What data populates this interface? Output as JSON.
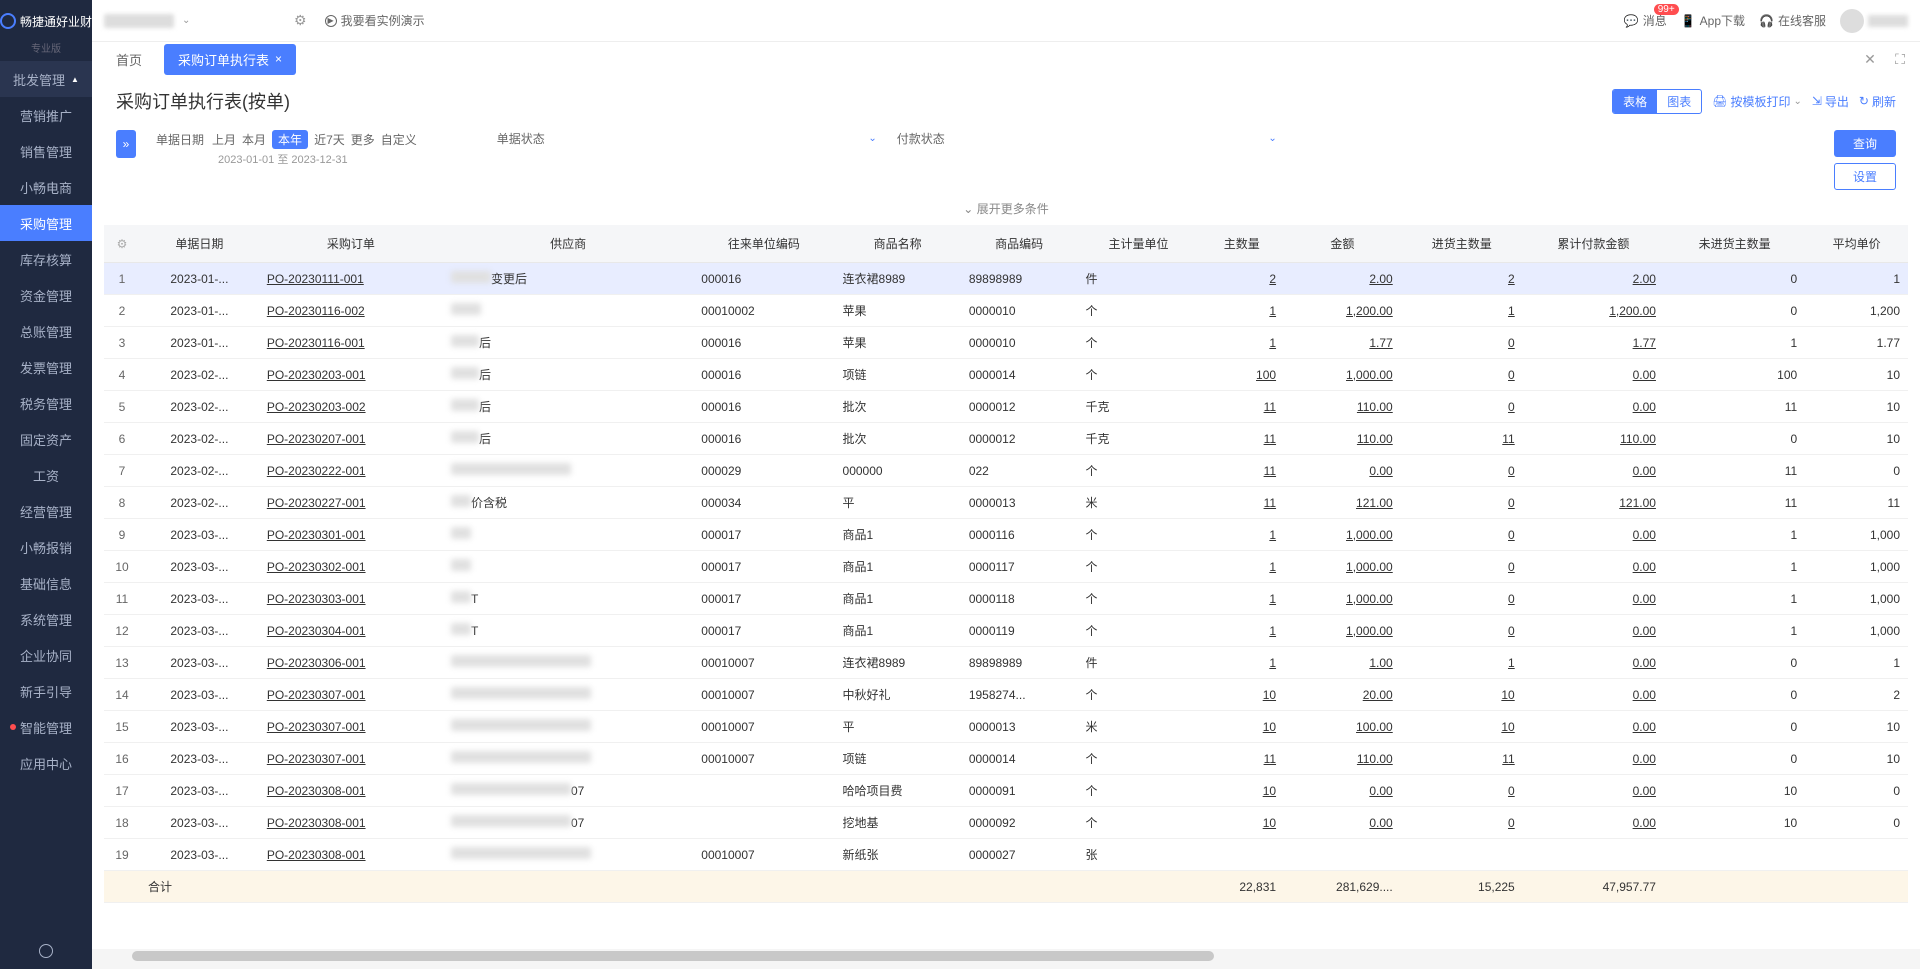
{
  "brand": {
    "name": "畅捷通好业财",
    "edition": "专业版"
  },
  "topbar": {
    "demo_link": "我要看实例演示",
    "msg": "消息",
    "msg_badge": "99+",
    "app_download": "App下载",
    "online_service": "在线客服"
  },
  "sidebar": {
    "items": [
      {
        "label": "批发管理",
        "expanded": true
      },
      {
        "label": "营销推广"
      },
      {
        "label": "销售管理"
      },
      {
        "label": "小畅电商"
      },
      {
        "label": "采购管理",
        "active": true
      },
      {
        "label": "库存核算"
      },
      {
        "label": "资金管理"
      },
      {
        "label": "总账管理"
      },
      {
        "label": "发票管理"
      },
      {
        "label": "税务管理"
      },
      {
        "label": "固定资产"
      },
      {
        "label": "工资"
      },
      {
        "label": "经营管理"
      },
      {
        "label": "小畅报销"
      },
      {
        "label": "基础信息"
      },
      {
        "label": "系统管理"
      },
      {
        "label": "企业协同"
      },
      {
        "label": "新手引导"
      },
      {
        "label": "智能管理",
        "smart": true
      },
      {
        "label": "应用中心"
      }
    ]
  },
  "tabs": {
    "home": "首页",
    "active": "采购订单执行表"
  },
  "page": {
    "title": "采购订单执行表(按单)",
    "view_table": "表格",
    "view_chart": "图表",
    "print": "按模板打印",
    "export": "导出",
    "refresh": "刷新"
  },
  "filters": {
    "date_label": "单据日期",
    "opts": [
      "上月",
      "本月",
      "本年",
      "近7天",
      "更多",
      "自定义"
    ],
    "active_opt": "本年",
    "date_range": "2023-01-01 至 2023-12-31",
    "status_label": "单据状态",
    "pay_label": "付款状态",
    "query": "查询",
    "settings": "设置",
    "more": "展开更多条件"
  },
  "table": {
    "columns": [
      "单据日期",
      "采购订单",
      "供应商",
      "往来单位编码",
      "商品名称",
      "商品编码",
      "主计量单位",
      "主数量",
      "金额",
      "进货主数量",
      "累计付款金额",
      "未进货主数量",
      "平均单价"
    ],
    "rows": [
      {
        "idx": 1,
        "date": "2023-01-...",
        "po": "PO-20230111-001",
        "supplier": "变更后",
        "supplier_blur": 40,
        "code": "000016",
        "product": "连衣裙8989",
        "pcode": "89898989",
        "unit": "件",
        "qty": "2",
        "amt": "2.00",
        "in_qty": "2",
        "paid": "2.00",
        "out_qty": "0",
        "avg": "1",
        "selected": true
      },
      {
        "idx": 2,
        "date": "2023-01-...",
        "po": "PO-20230116-002",
        "supplier": "",
        "supplier_blur": 30,
        "code": "00010002",
        "product": "苹果",
        "pcode": "0000010",
        "unit": "个",
        "qty": "1",
        "amt": "1,200.00",
        "in_qty": "1",
        "paid": "1,200.00",
        "out_qty": "0",
        "avg": "1,200"
      },
      {
        "idx": 3,
        "date": "2023-01-...",
        "po": "PO-20230116-001",
        "supplier": "后",
        "supplier_blur": 28,
        "code": "000016",
        "product": "苹果",
        "pcode": "0000010",
        "unit": "个",
        "qty": "1",
        "amt": "1.77",
        "in_qty": "0",
        "paid": "1.77",
        "out_qty": "1",
        "avg": "1.77"
      },
      {
        "idx": 4,
        "date": "2023-02-...",
        "po": "PO-20230203-001",
        "supplier": "后",
        "supplier_blur": 28,
        "code": "000016",
        "product": "项链",
        "pcode": "0000014",
        "unit": "个",
        "qty": "100",
        "amt": "1,000.00",
        "in_qty": "0",
        "paid": "0.00",
        "out_qty": "100",
        "avg": "10"
      },
      {
        "idx": 5,
        "date": "2023-02-...",
        "po": "PO-20230203-002",
        "supplier": "后",
        "supplier_blur": 28,
        "code": "000016",
        "product": "批次",
        "pcode": "0000012",
        "unit": "千克",
        "qty": "11",
        "amt": "110.00",
        "in_qty": "0",
        "paid": "0.00",
        "out_qty": "11",
        "avg": "10"
      },
      {
        "idx": 6,
        "date": "2023-02-...",
        "po": "PO-20230207-001",
        "supplier": "后",
        "supplier_blur": 28,
        "code": "000016",
        "product": "批次",
        "pcode": "0000012",
        "unit": "千克",
        "qty": "11",
        "amt": "110.00",
        "in_qty": "11",
        "paid": "110.00",
        "out_qty": "0",
        "avg": "10"
      },
      {
        "idx": 7,
        "date": "2023-02-...",
        "po": "PO-20230222-001",
        "supplier": "",
        "supplier_blur": 120,
        "code": "000029",
        "product": "000000",
        "pcode": "022",
        "unit": "个",
        "qty": "11",
        "amt": "0.00",
        "in_qty": "0",
        "paid": "0.00",
        "out_qty": "11",
        "avg": "0"
      },
      {
        "idx": 8,
        "date": "2023-02-...",
        "po": "PO-20230227-001",
        "supplier": "价含税",
        "supplier_blur": 20,
        "code": "000034",
        "product": "平",
        "pcode": "0000013",
        "unit": "米",
        "qty": "11",
        "amt": "121.00",
        "in_qty": "0",
        "paid": "121.00",
        "out_qty": "11",
        "avg": "11"
      },
      {
        "idx": 9,
        "date": "2023-03-...",
        "po": "PO-20230301-001",
        "supplier": "",
        "supplier_blur": 20,
        "code": "000017",
        "product": "商品1",
        "pcode": "0000116",
        "unit": "个",
        "qty": "1",
        "amt": "1,000.00",
        "in_qty": "0",
        "paid": "0.00",
        "out_qty": "1",
        "avg": "1,000"
      },
      {
        "idx": 10,
        "date": "2023-03-...",
        "po": "PO-20230302-001",
        "supplier": "",
        "supplier_blur": 20,
        "code": "000017",
        "product": "商品1",
        "pcode": "0000117",
        "unit": "个",
        "qty": "1",
        "amt": "1,000.00",
        "in_qty": "0",
        "paid": "0.00",
        "out_qty": "1",
        "avg": "1,000"
      },
      {
        "idx": 11,
        "date": "2023-03-...",
        "po": "PO-20230303-001",
        "supplier": "T",
        "supplier_blur": 20,
        "code": "000017",
        "product": "商品1",
        "pcode": "0000118",
        "unit": "个",
        "qty": "1",
        "amt": "1,000.00",
        "in_qty": "0",
        "paid": "0.00",
        "out_qty": "1",
        "avg": "1,000"
      },
      {
        "idx": 12,
        "date": "2023-03-...",
        "po": "PO-20230304-001",
        "supplier": "T",
        "supplier_blur": 20,
        "code": "000017",
        "product": "商品1",
        "pcode": "0000119",
        "unit": "个",
        "qty": "1",
        "amt": "1,000.00",
        "in_qty": "0",
        "paid": "0.00",
        "out_qty": "1",
        "avg": "1,000"
      },
      {
        "idx": 13,
        "date": "2023-03-...",
        "po": "PO-20230306-001",
        "supplier": "",
        "supplier_blur": 140,
        "code": "00010007",
        "product": "连衣裙8989",
        "pcode": "89898989",
        "unit": "件",
        "qty": "1",
        "amt": "1.00",
        "in_qty": "1",
        "paid": "0.00",
        "out_qty": "0",
        "avg": "1"
      },
      {
        "idx": 14,
        "date": "2023-03-...",
        "po": "PO-20230307-001",
        "supplier": "",
        "supplier_blur": 140,
        "code": "00010007",
        "product": "中秋好礼",
        "pcode": "1958274...",
        "unit": "个",
        "qty": "10",
        "amt": "20.00",
        "in_qty": "10",
        "paid": "0.00",
        "out_qty": "0",
        "avg": "2"
      },
      {
        "idx": 15,
        "date": "2023-03-...",
        "po": "PO-20230307-001",
        "supplier": "",
        "supplier_blur": 140,
        "code": "00010007",
        "product": "平",
        "pcode": "0000013",
        "unit": "米",
        "qty": "10",
        "amt": "100.00",
        "in_qty": "10",
        "paid": "0.00",
        "out_qty": "0",
        "avg": "10"
      },
      {
        "idx": 16,
        "date": "2023-03-...",
        "po": "PO-20230307-001",
        "supplier": "",
        "supplier_blur": 140,
        "code": "00010007",
        "product": "项链",
        "pcode": "0000014",
        "unit": "个",
        "qty": "11",
        "amt": "110.00",
        "in_qty": "11",
        "paid": "0.00",
        "out_qty": "0",
        "avg": "10"
      },
      {
        "idx": 17,
        "date": "2023-03-...",
        "po": "PO-20230308-001",
        "supplier": "07",
        "supplier_blur": 120,
        "code": "",
        "product": "哈哈项目费",
        "pcode": "0000091",
        "unit": "个",
        "qty": "10",
        "amt": "0.00",
        "in_qty": "0",
        "paid": "0.00",
        "out_qty": "10",
        "avg": "0"
      },
      {
        "idx": 18,
        "date": "2023-03-...",
        "po": "PO-20230308-001",
        "supplier": "07",
        "supplier_blur": 120,
        "code": "",
        "product": "挖地基",
        "pcode": "0000092",
        "unit": "个",
        "qty": "10",
        "amt": "0.00",
        "in_qty": "0",
        "paid": "0.00",
        "out_qty": "10",
        "avg": "0"
      },
      {
        "idx": 19,
        "date": "2023-03-...",
        "po": "PO-20230308-001",
        "supplier": "",
        "supplier_blur": 140,
        "code": "00010007",
        "product": "新纸张",
        "pcode": "0000027",
        "unit": "张",
        "qty": "",
        "amt": "",
        "in_qty": "",
        "paid": "",
        "out_qty": "",
        "avg": ""
      }
    ],
    "totals": {
      "label": "合计",
      "qty": "22,831",
      "amt": "281,629....",
      "in_qty": "15,225",
      "paid": "47,957.77"
    }
  }
}
